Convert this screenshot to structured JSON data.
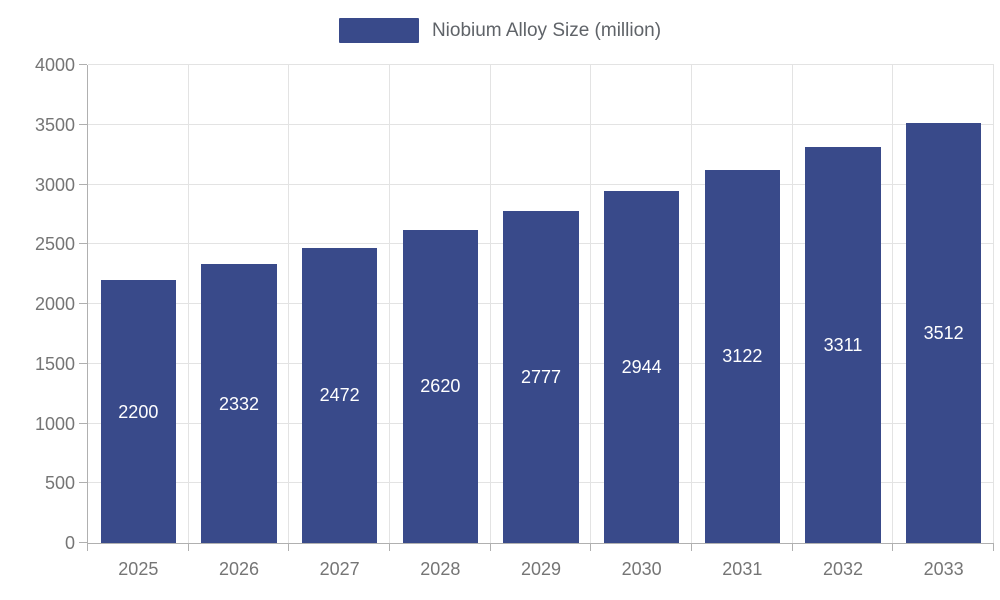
{
  "chart_data": {
    "type": "bar",
    "title": "Niobium Alloy Size (million)",
    "categories": [
      "2025",
      "2026",
      "2027",
      "2028",
      "2029",
      "2030",
      "2031",
      "2032",
      "2033"
    ],
    "series": [
      {
        "name": "Niobium Alloy Size (million)",
        "values": [
          2200,
          2332,
          2472,
          2620,
          2777,
          2944,
          3122,
          3311,
          3512
        ]
      }
    ],
    "values": [
      2200,
      2332,
      2472,
      2620,
      2777,
      2944,
      3122,
      3311,
      3512
    ],
    "xlabel": "",
    "ylabel": "",
    "ylim": [
      0,
      4000
    ],
    "ytick_step": 500,
    "yticks": [
      0,
      500,
      1000,
      1500,
      2000,
      2500,
      3000,
      3500,
      4000
    ],
    "grid": true,
    "legend_position": "top-center",
    "value_labels": "inside-center",
    "colors": {
      "bar": "#394A8A",
      "bar_label": "#ffffff",
      "axis_line": "#b0b0b0",
      "grid_line": "#e3e3e3",
      "tick_label": "#757575",
      "legend_text": "#5f6368",
      "background": "#ffffff"
    }
  }
}
